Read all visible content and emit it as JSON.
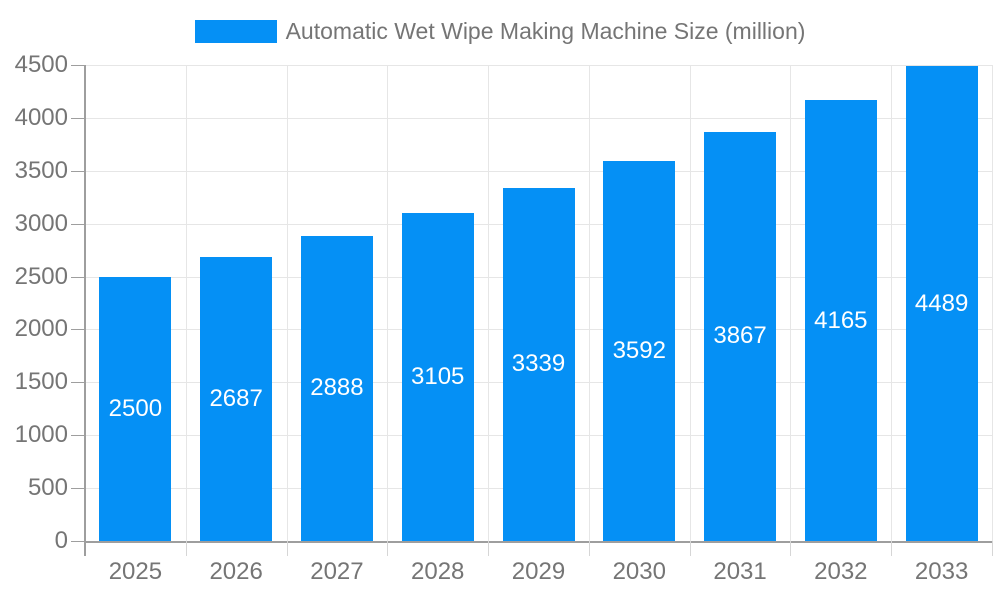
{
  "legend": {
    "label": "Automatic Wet Wipe Making Machine Size (million)"
  },
  "colors": {
    "background": "#ffffff",
    "bar": "#0590f5",
    "grid": "#e6e6e6",
    "axis": "#9e9e9e",
    "tick": "#d6d6d6",
    "axis_text": "#757575",
    "bar_label_text": "#ffffff"
  },
  "chart_data": {
    "type": "bar",
    "title": "Automatic Wet Wipe Making Machine Size (million)",
    "series_name": "Automatic Wet Wipe Making Machine Size (million)",
    "categories": [
      "2025",
      "2026",
      "2027",
      "2028",
      "2029",
      "2030",
      "2031",
      "2032",
      "2033"
    ],
    "values": [
      2500,
      2687,
      2888,
      3105,
      3339,
      3592,
      3867,
      4165,
      4489
    ],
    "xlabel": "",
    "ylabel": "",
    "ylim": [
      0,
      4500
    ],
    "y_tick_step": 500,
    "y_tick_labels": [
      "0",
      "500",
      "1000",
      "1500",
      "2000",
      "2500",
      "3000",
      "3500",
      "4000",
      "4500"
    ],
    "grid": true,
    "vertical_gridlines": true,
    "legend_position": "top",
    "bar_labels": "inside-center"
  }
}
